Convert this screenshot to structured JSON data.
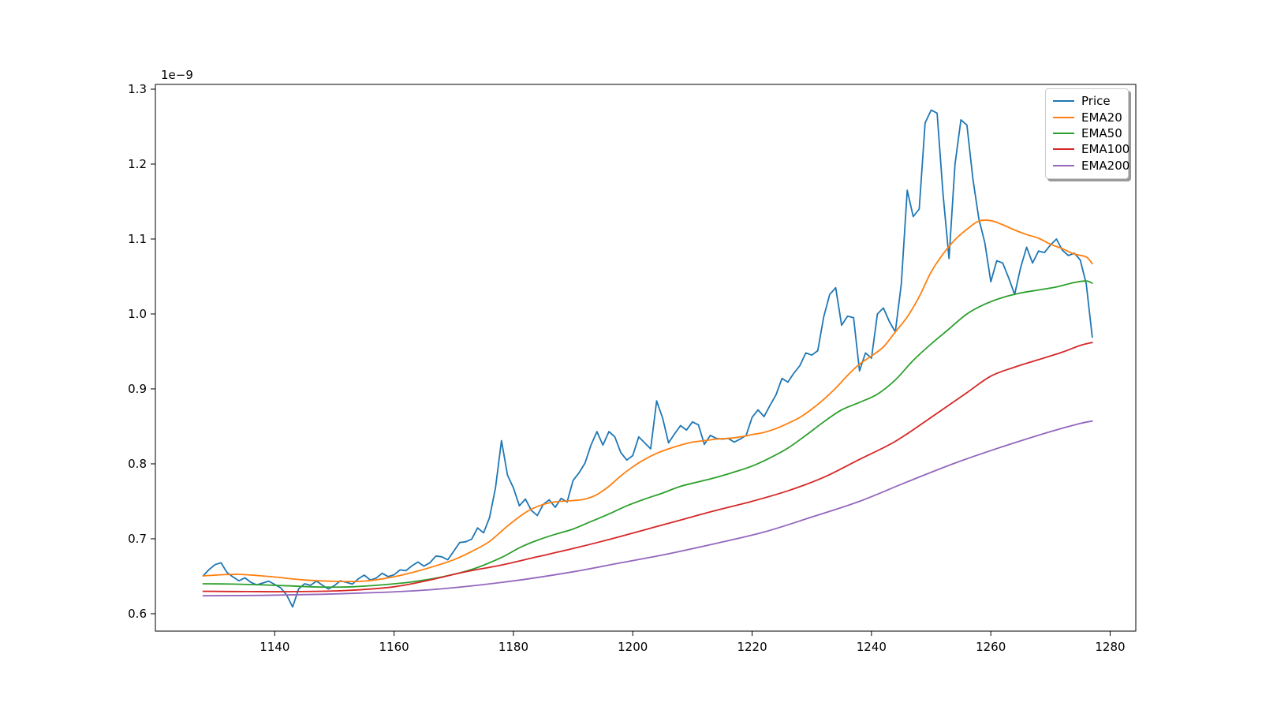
{
  "figure": {
    "background": "#ffffff",
    "offset_label": "1e−9"
  },
  "axes": {
    "xlim": [
      1120.0,
      1284.3
    ],
    "ylim": [
      0.5768,
      1.3063
    ],
    "x_ticks": [
      1140,
      1160,
      1180,
      1200,
      1220,
      1240,
      1260,
      1280
    ],
    "y_ticks": [
      0.6,
      0.7,
      0.8,
      0.9,
      1.0,
      1.1,
      1.2,
      1.3
    ]
  },
  "chart_data": {
    "type": "line",
    "title": "",
    "xlabel": "",
    "ylabel": "",
    "y_scale_offset": "1e-9",
    "grid": false,
    "x_start": 1128,
    "x_step": 1,
    "legend": {
      "position": "upper right",
      "entries": [
        "Price",
        "EMA20",
        "EMA50",
        "EMA100",
        "EMA200"
      ]
    },
    "series": [
      {
        "name": "Price",
        "color": "#1f77b4",
        "values": [
          0.6505,
          0.659,
          0.6655,
          0.668,
          0.655,
          0.649,
          0.644,
          0.648,
          0.642,
          0.6385,
          0.641,
          0.6435,
          0.639,
          0.6345,
          0.625,
          0.609,
          0.633,
          0.64,
          0.638,
          0.6435,
          0.638,
          0.633,
          0.6375,
          0.644,
          0.642,
          0.6395,
          0.6465,
          0.6515,
          0.645,
          0.6475,
          0.654,
          0.6495,
          0.652,
          0.6585,
          0.6575,
          0.664,
          0.669,
          0.6635,
          0.668,
          0.677,
          0.676,
          0.672,
          0.6835,
          0.695,
          0.696,
          0.6995,
          0.7145,
          0.708,
          0.7285,
          0.768,
          0.831,
          0.785,
          0.768,
          0.744,
          0.753,
          0.738,
          0.731,
          0.746,
          0.752,
          0.742,
          0.754,
          0.749,
          0.778,
          0.788,
          0.801,
          0.825,
          0.843,
          0.825,
          0.843,
          0.836,
          0.815,
          0.805,
          0.811,
          0.836,
          0.828,
          0.82,
          0.884,
          0.861,
          0.828,
          0.84,
          0.851,
          0.845,
          0.856,
          0.852,
          0.826,
          0.838,
          0.834,
          0.833,
          0.834,
          0.829,
          0.833,
          0.838,
          0.862,
          0.872,
          0.863,
          0.878,
          0.892,
          0.914,
          0.909,
          0.921,
          0.931,
          0.948,
          0.945,
          0.951,
          0.996,
          1.026,
          1.035,
          0.985,
          0.997,
          0.995,
          0.924,
          0.948,
          0.941,
          1.0,
          1.008,
          0.99,
          0.976,
          1.04,
          1.165,
          1.13,
          1.14,
          1.255,
          1.272,
          1.268,
          1.16,
          1.074,
          1.2,
          1.259,
          1.252,
          1.18,
          1.127,
          1.095,
          1.043,
          1.071,
          1.068,
          1.048,
          1.026,
          1.062,
          1.089,
          1.068,
          1.084,
          1.082,
          1.092,
          1.1,
          1.085,
          1.078,
          1.081,
          1.072,
          1.04,
          0.969
        ]
      },
      {
        "name": "EMA20",
        "color": "#ff7f0e",
        "anchors": [
          [
            1128,
            0.6505
          ],
          [
            1131,
            0.652
          ],
          [
            1134,
            0.6525
          ],
          [
            1137,
            0.651
          ],
          [
            1140,
            0.649
          ],
          [
            1143,
            0.6465
          ],
          [
            1146,
            0.6445
          ],
          [
            1149,
            0.6435
          ],
          [
            1152,
            0.643
          ],
          [
            1155,
            0.6435
          ],
          [
            1158,
            0.6465
          ],
          [
            1161,
            0.651
          ],
          [
            1164,
            0.657
          ],
          [
            1167,
            0.664
          ],
          [
            1170,
            0.672
          ],
          [
            1173,
            0.683
          ],
          [
            1176,
            0.6965
          ],
          [
            1179,
            0.717
          ],
          [
            1182,
            0.735
          ],
          [
            1184,
            0.743
          ],
          [
            1186,
            0.748
          ],
          [
            1188,
            0.75
          ],
          [
            1190,
            0.751
          ],
          [
            1192,
            0.753
          ],
          [
            1194,
            0.759
          ],
          [
            1196,
            0.77
          ],
          [
            1198,
            0.784
          ],
          [
            1200,
            0.796
          ],
          [
            1202,
            0.806
          ],
          [
            1204,
            0.814
          ],
          [
            1206,
            0.82
          ],
          [
            1208,
            0.825
          ],
          [
            1210,
            0.829
          ],
          [
            1212,
            0.831
          ],
          [
            1214,
            0.833
          ],
          [
            1216,
            0.834
          ],
          [
            1218,
            0.836
          ],
          [
            1220,
            0.839
          ],
          [
            1222,
            0.842
          ],
          [
            1224,
            0.847
          ],
          [
            1226,
            0.854
          ],
          [
            1228,
            0.862
          ],
          [
            1230,
            0.873
          ],
          [
            1232,
            0.886
          ],
          [
            1234,
            0.901
          ],
          [
            1236,
            0.918
          ],
          [
            1238,
            0.933
          ],
          [
            1240,
            0.944
          ],
          [
            1242,
            0.956
          ],
          [
            1244,
            0.976
          ],
          [
            1246,
            0.996
          ],
          [
            1248,
            1.023
          ],
          [
            1250,
            1.056
          ],
          [
            1252,
            1.08
          ],
          [
            1254,
            1.099
          ],
          [
            1256,
            1.113
          ],
          [
            1258,
            1.124
          ],
          [
            1260,
            1.1245
          ],
          [
            1262,
            1.119
          ],
          [
            1264,
            1.112
          ],
          [
            1266,
            1.106
          ],
          [
            1268,
            1.101
          ],
          [
            1270,
            1.093
          ],
          [
            1272,
            1.087
          ],
          [
            1274,
            1.08
          ],
          [
            1276,
            1.076
          ],
          [
            1277,
            1.067
          ]
        ]
      },
      {
        "name": "EMA50",
        "color": "#2ca02c",
        "anchors": [
          [
            1128,
            0.64
          ],
          [
            1133,
            0.6395
          ],
          [
            1138,
            0.6385
          ],
          [
            1143,
            0.637
          ],
          [
            1148,
            0.6355
          ],
          [
            1153,
            0.636
          ],
          [
            1158,
            0.6385
          ],
          [
            1163,
            0.6425
          ],
          [
            1168,
            0.649
          ],
          [
            1173,
            0.659
          ],
          [
            1178,
            0.675
          ],
          [
            1181,
            0.688
          ],
          [
            1184,
            0.698
          ],
          [
            1187,
            0.706
          ],
          [
            1190,
            0.713
          ],
          [
            1193,
            0.723
          ],
          [
            1196,
            0.733
          ],
          [
            1199,
            0.744
          ],
          [
            1202,
            0.753
          ],
          [
            1205,
            0.761
          ],
          [
            1208,
            0.77
          ],
          [
            1211,
            0.776
          ],
          [
            1214,
            0.782
          ],
          [
            1217,
            0.789
          ],
          [
            1220,
            0.797
          ],
          [
            1223,
            0.808
          ],
          [
            1226,
            0.821
          ],
          [
            1229,
            0.838
          ],
          [
            1232,
            0.856
          ],
          [
            1235,
            0.872
          ],
          [
            1238,
            0.882
          ],
          [
            1241,
            0.893
          ],
          [
            1244,
            0.912
          ],
          [
            1247,
            0.938
          ],
          [
            1250,
            0.96
          ],
          [
            1253,
            0.98
          ],
          [
            1256,
            1.0
          ],
          [
            1259,
            1.013
          ],
          [
            1262,
            1.022
          ],
          [
            1265,
            1.028
          ],
          [
            1268,
            1.032
          ],
          [
            1271,
            1.036
          ],
          [
            1274,
            1.042
          ],
          [
            1276,
            1.044
          ],
          [
            1277,
            1.041
          ]
        ]
      },
      {
        "name": "EMA100",
        "color": "#d62728",
        "anchors": [
          [
            1128,
            0.63
          ],
          [
            1136,
            0.6295
          ],
          [
            1144,
            0.6295
          ],
          [
            1152,
            0.631
          ],
          [
            1160,
            0.636
          ],
          [
            1166,
            0.645
          ],
          [
            1172,
            0.656
          ],
          [
            1178,
            0.665
          ],
          [
            1184,
            0.676
          ],
          [
            1190,
            0.687
          ],
          [
            1196,
            0.699
          ],
          [
            1202,
            0.712
          ],
          [
            1208,
            0.725
          ],
          [
            1214,
            0.738
          ],
          [
            1220,
            0.75
          ],
          [
            1226,
            0.764
          ],
          [
            1232,
            0.782
          ],
          [
            1238,
            0.806
          ],
          [
            1244,
            0.83
          ],
          [
            1250,
            0.862
          ],
          [
            1256,
            0.895
          ],
          [
            1260,
            0.917
          ],
          [
            1264,
            0.929
          ],
          [
            1268,
            0.939
          ],
          [
            1272,
            0.949
          ],
          [
            1275,
            0.958
          ],
          [
            1277,
            0.962
          ]
        ]
      },
      {
        "name": "EMA200",
        "color": "#9467bd",
        "anchors": [
          [
            1128,
            0.624
          ],
          [
            1138,
            0.6245
          ],
          [
            1148,
            0.626
          ],
          [
            1158,
            0.6285
          ],
          [
            1166,
            0.632
          ],
          [
            1174,
            0.638
          ],
          [
            1182,
            0.646
          ],
          [
            1190,
            0.656
          ],
          [
            1198,
            0.668
          ],
          [
            1206,
            0.68
          ],
          [
            1214,
            0.694
          ],
          [
            1222,
            0.709
          ],
          [
            1230,
            0.729
          ],
          [
            1238,
            0.75
          ],
          [
            1246,
            0.776
          ],
          [
            1254,
            0.801
          ],
          [
            1262,
            0.823
          ],
          [
            1270,
            0.843
          ],
          [
            1275,
            0.854
          ],
          [
            1277,
            0.857
          ]
        ]
      }
    ]
  }
}
